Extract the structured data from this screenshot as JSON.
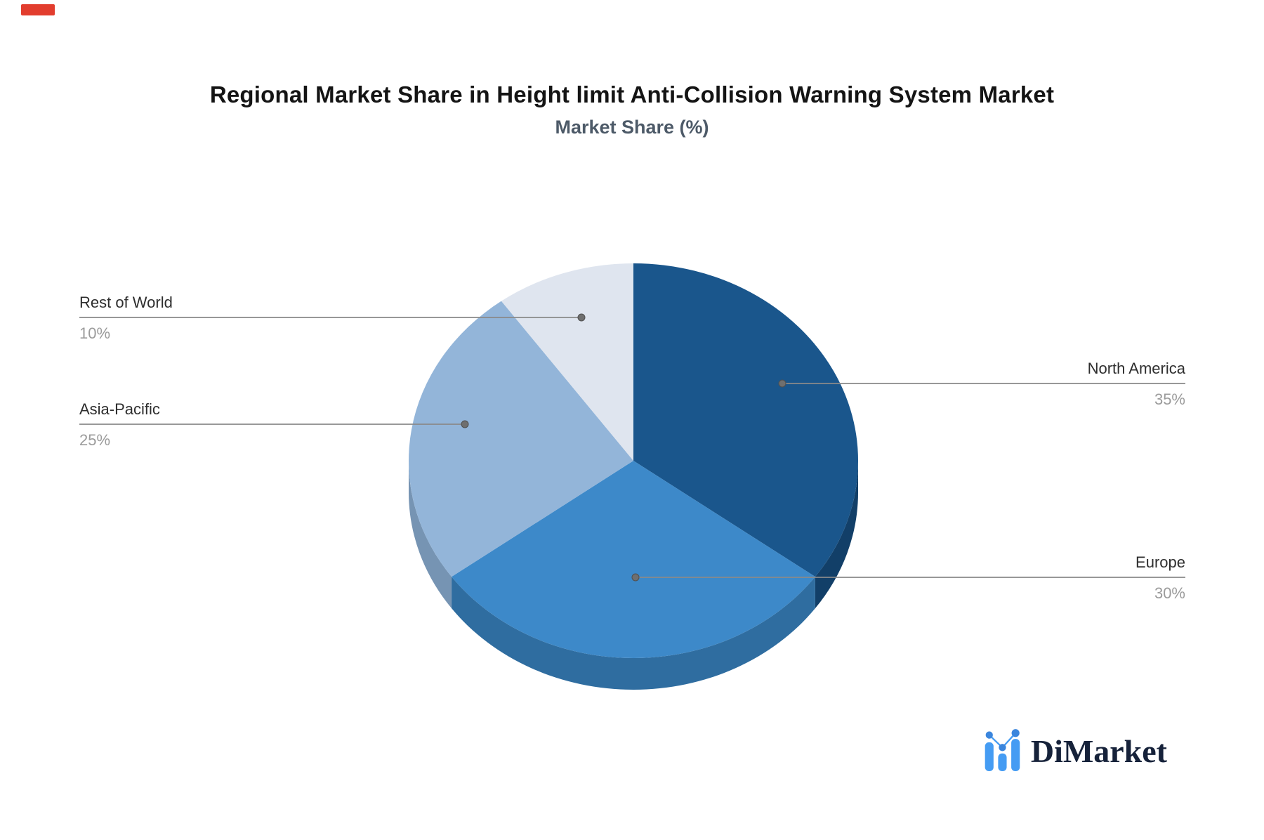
{
  "header": {
    "title": "Regional Market Share in Height limit Anti-Collision Warning System Market",
    "subtitle": "Market Share (%)"
  },
  "chart_data": {
    "type": "pie",
    "title": "Regional Market Share in Height limit Anti-Collision Warning System Market",
    "subtitle": "Market Share (%)",
    "unit": "%",
    "style": "3d-pie",
    "start_angle": "12-oclock",
    "direction": "clockwise",
    "legend_position": "callout-labels",
    "slices": [
      {
        "label": "North America",
        "value": 35,
        "value_display": "35%",
        "color": "#1a568c",
        "side_color": "#123f68",
        "callout_side": "right"
      },
      {
        "label": "Europe",
        "value": 30,
        "value_display": "30%",
        "color": "#3d89c9",
        "side_color": "#2f6da0",
        "callout_side": "right"
      },
      {
        "label": "Asia-Pacific",
        "value": 25,
        "value_display": "25%",
        "color": "#93b5d9",
        "side_color": "#7694b3",
        "callout_side": "left"
      },
      {
        "label": "Rest of World",
        "value": 10,
        "value_display": "10%",
        "color": "#dfe5ef",
        "side_color": "#b9c2d0",
        "callout_side": "left"
      }
    ],
    "colors": {
      "callout_label": "#2e2e2e",
      "callout_value": "#9b9b9b",
      "leader_line": "#8a8a8a",
      "leader_dot": "#6f6f6f"
    }
  },
  "branding": {
    "name": "DiMarket",
    "logo_icon": "bar-line-chart-icon",
    "icon_bar_color": "#459cf3",
    "icon_dot_color": "#3b86dd",
    "text_color": "#16223a"
  }
}
